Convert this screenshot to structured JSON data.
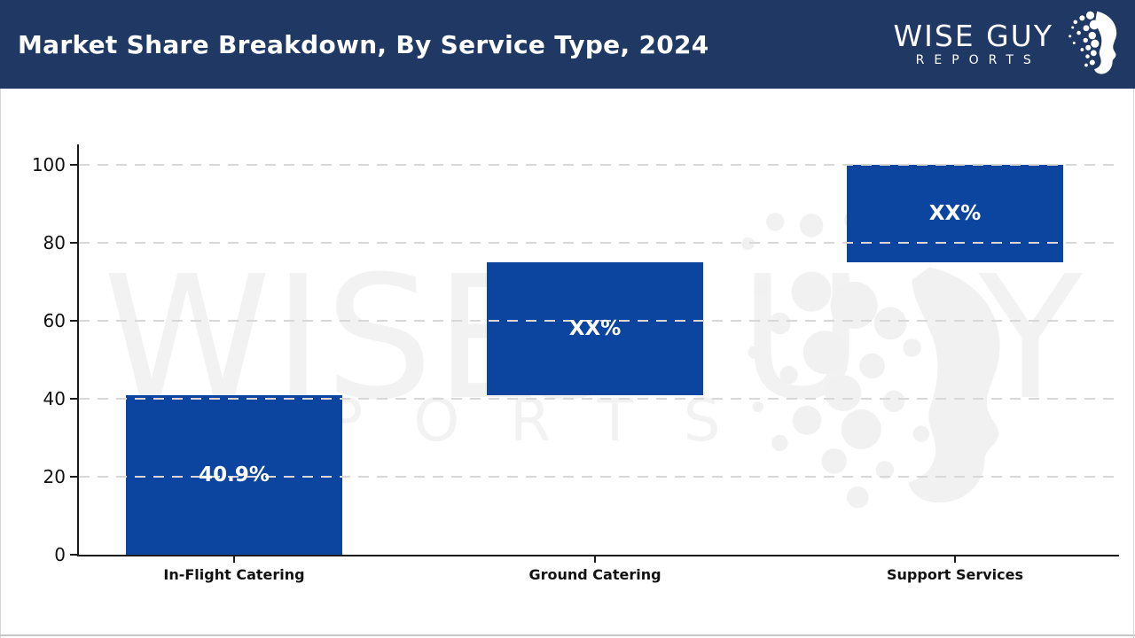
{
  "header": {
    "title": "Market Share Breakdown, By Service Type, 2024",
    "bg_color": "#1f3864",
    "logo": {
      "line1": "WISE GUY",
      "line2": "REPORTS"
    }
  },
  "watermark": {
    "word1": "WISE",
    "word2": "G U Y",
    "word3": "REPORTS"
  },
  "chart_data": {
    "type": "bar",
    "subtype": "waterfall",
    "title": "Market Share Breakdown, By Service Type, 2024",
    "categories": [
      "In-Flight Catering",
      "Ground Catering",
      "Support Services"
    ],
    "segments": [
      {
        "category": "In-Flight Catering",
        "start": 0,
        "end": 40.9,
        "label": "40.9%"
      },
      {
        "category": "Ground Catering",
        "start": 40.9,
        "end": 75,
        "label": "XX%"
      },
      {
        "category": "Support Services",
        "start": 75,
        "end": 100,
        "label": "XX%"
      }
    ],
    "yticks": [
      0,
      20,
      40,
      60,
      80,
      100
    ],
    "ylim": [
      0,
      100
    ],
    "xlabel": "",
    "ylabel": "",
    "grid": "horizontal-dashed",
    "legend": "none",
    "bar_color": "#0b45a0",
    "bar_label_color": "#ffffff",
    "axis_color": "#1b1b1b",
    "gridline_color": "#d8d8d8"
  }
}
